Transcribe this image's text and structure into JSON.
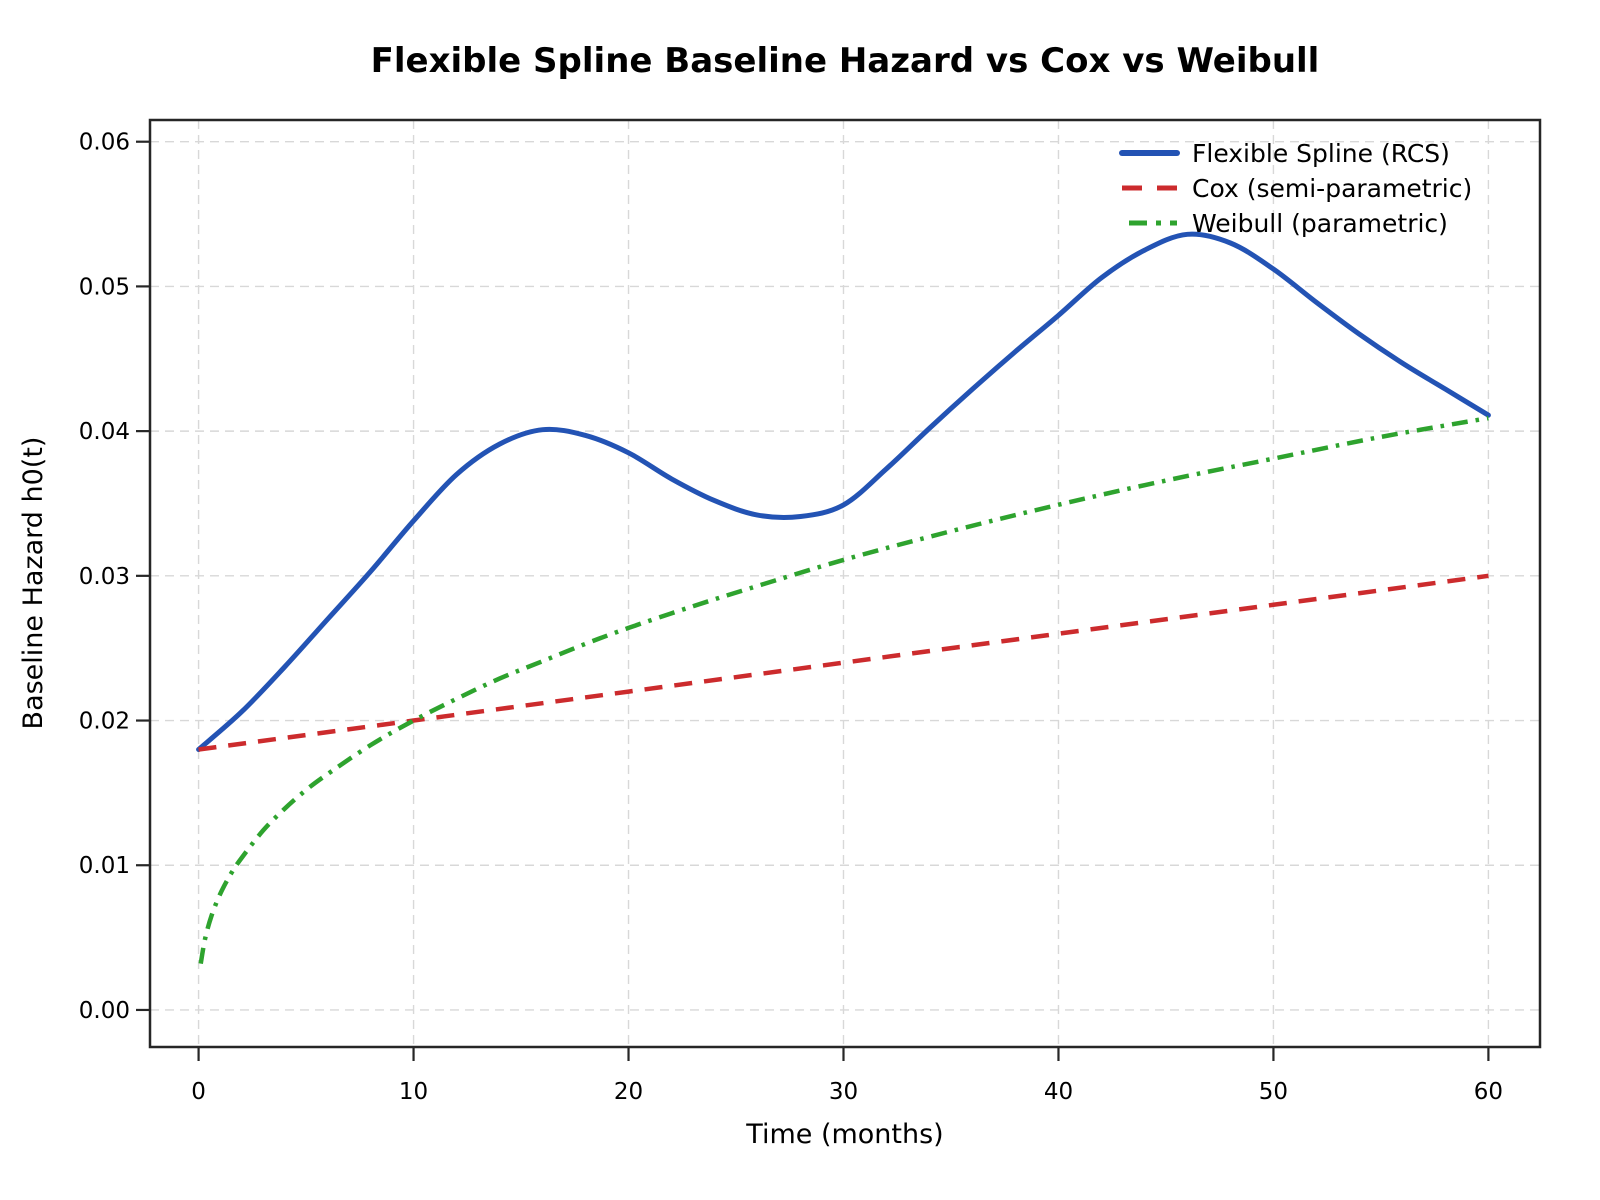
{
  "page": {
    "background": "#ffffff"
  },
  "chart_data": {
    "type": "line",
    "title": "Flexible Spline Baseline Hazard vs Cox vs Weibull",
    "xlabel": "Time (months)",
    "ylabel": "Baseline Hazard h0(t)",
    "xlim": [
      -2.26,
      62.4
    ],
    "ylim": [
      -0.00256,
      0.0615
    ],
    "grid": true,
    "grid_style": "dashed",
    "legend_position": "upper-right-inside",
    "colors": {
      "grid": "#d8d8d8",
      "axis": "#262626",
      "text": "#000000",
      "background": "#ffffff"
    },
    "xticks": [
      {
        "v": 0,
        "label": "0"
      },
      {
        "v": 10,
        "label": "10"
      },
      {
        "v": 20,
        "label": "20"
      },
      {
        "v": 30,
        "label": "30"
      },
      {
        "v": 40,
        "label": "40"
      },
      {
        "v": 50,
        "label": "50"
      },
      {
        "v": 60,
        "label": "60"
      }
    ],
    "yticks": [
      {
        "v": 0.0,
        "label": "0.00"
      },
      {
        "v": 0.01,
        "label": "0.01"
      },
      {
        "v": 0.02,
        "label": "0.02"
      },
      {
        "v": 0.03,
        "label": "0.03"
      },
      {
        "v": 0.04,
        "label": "0.04"
      },
      {
        "v": 0.05,
        "label": "0.05"
      },
      {
        "v": 0.06,
        "label": "0.06"
      }
    ],
    "series": [
      {
        "name": "Flexible Spline (RCS)",
        "color": "#2353b4",
        "style": "solid",
        "width": 5,
        "points": [
          [
            0,
            0.018
          ],
          [
            2,
            0.0206
          ],
          [
            4,
            0.0237
          ],
          [
            6,
            0.027
          ],
          [
            8,
            0.0303
          ],
          [
            10,
            0.0338
          ],
          [
            12,
            0.037
          ],
          [
            14,
            0.0391
          ],
          [
            16,
            0.0401
          ],
          [
            18,
            0.0397
          ],
          [
            20,
            0.0385
          ],
          [
            22,
            0.0367
          ],
          [
            24,
            0.0352
          ],
          [
            26,
            0.0342
          ],
          [
            28,
            0.0341
          ],
          [
            30,
            0.0349
          ],
          [
            32,
            0.0374
          ],
          [
            34,
            0.0402
          ],
          [
            36,
            0.0429
          ],
          [
            38,
            0.0455
          ],
          [
            40,
            0.048
          ],
          [
            42,
            0.0506
          ],
          [
            44,
            0.0525
          ],
          [
            46,
            0.0536
          ],
          [
            48,
            0.053
          ],
          [
            50,
            0.0512
          ],
          [
            52,
            0.0489
          ],
          [
            54,
            0.0467
          ],
          [
            56,
            0.0447
          ],
          [
            58,
            0.0429
          ],
          [
            60,
            0.0411
          ]
        ]
      },
      {
        "name": "Cox (semi-parametric)",
        "color": "#cc2b2d",
        "style": "dashed",
        "width": 4.5,
        "points": [
          [
            0,
            0.018
          ],
          [
            10,
            0.02
          ],
          [
            20,
            0.022
          ],
          [
            30,
            0.024
          ],
          [
            40,
            0.026
          ],
          [
            50,
            0.028
          ],
          [
            60,
            0.03
          ]
        ]
      },
      {
        "name": "Weibull (parametric)",
        "color": "#2ea32e",
        "style": "dashdot",
        "width": 4.5,
        "points": [
          [
            0.1,
            0.0032
          ],
          [
            0.3,
            0.0049
          ],
          [
            0.6,
            0.0065
          ],
          [
            1,
            0.008
          ],
          [
            1.5,
            0.0094
          ],
          [
            2,
            0.0105
          ],
          [
            3,
            0.0124
          ],
          [
            4,
            0.0139
          ],
          [
            5,
            0.0152
          ],
          [
            6,
            0.0163
          ],
          [
            8,
            0.0183
          ],
          [
            10,
            0.02
          ],
          [
            12,
            0.0215
          ],
          [
            14,
            0.0229
          ],
          [
            16,
            0.0241
          ],
          [
            18,
            0.0253
          ],
          [
            20,
            0.0264
          ],
          [
            23,
            0.0279
          ],
          [
            26,
            0.0293
          ],
          [
            30,
            0.0311
          ],
          [
            34,
            0.0327
          ],
          [
            38,
            0.0342
          ],
          [
            42,
            0.0356
          ],
          [
            46,
            0.0369
          ],
          [
            50,
            0.0381
          ],
          [
            55,
            0.0396
          ],
          [
            60,
            0.0409
          ]
        ]
      }
    ]
  }
}
